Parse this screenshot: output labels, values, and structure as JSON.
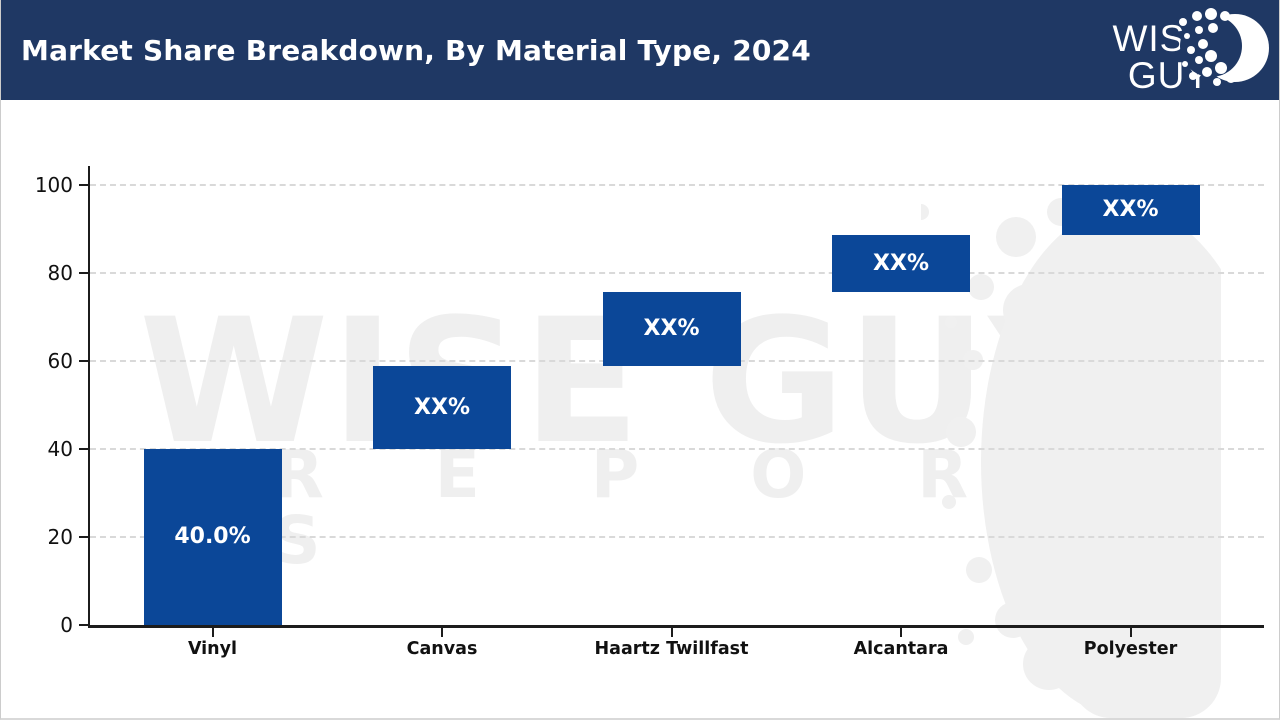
{
  "header": {
    "title": "Market Share Breakdown, By Material Type, 2024",
    "logo": {
      "line1": "WISE GUY",
      "line2": "R E P O R T S"
    },
    "background_color": "#1f3864",
    "text_color": "#ffffff"
  },
  "watermark": {
    "line1": "WISE GUY",
    "line2": "R E P O R T S"
  },
  "chart_data": {
    "type": "bar",
    "subtype": "waterfall",
    "title": "Market Share Breakdown, By Material Type, 2024",
    "categories": [
      "Vinyl",
      "Canvas",
      "Haartz Twillfast",
      "Alcantara",
      "Polyester"
    ],
    "series": [
      {
        "category": "Vinyl",
        "start": 0,
        "end": 40,
        "label": "40.0%"
      },
      {
        "category": "Canvas",
        "start": 40,
        "end": 58.8,
        "label": "XX%"
      },
      {
        "category": "Haartz Twillfast",
        "start": 58.8,
        "end": 75.6,
        "label": "XX%"
      },
      {
        "category": "Alcantara",
        "start": 75.6,
        "end": 88.6,
        "label": "XX%"
      },
      {
        "category": "Polyester",
        "start": 88.6,
        "end": 100,
        "label": "XX%"
      }
    ],
    "y_ticks": [
      0,
      20,
      40,
      60,
      80,
      100
    ],
    "ylim": [
      0,
      105
    ],
    "xlabel": "",
    "ylabel": "",
    "grid": "horizontal-dashed",
    "legend": "none",
    "bar_color": "#0b4798",
    "bar_label_color": "#ffffff",
    "axis_color": "#1c1c1c",
    "gridline_color": "#d9d9d9"
  }
}
